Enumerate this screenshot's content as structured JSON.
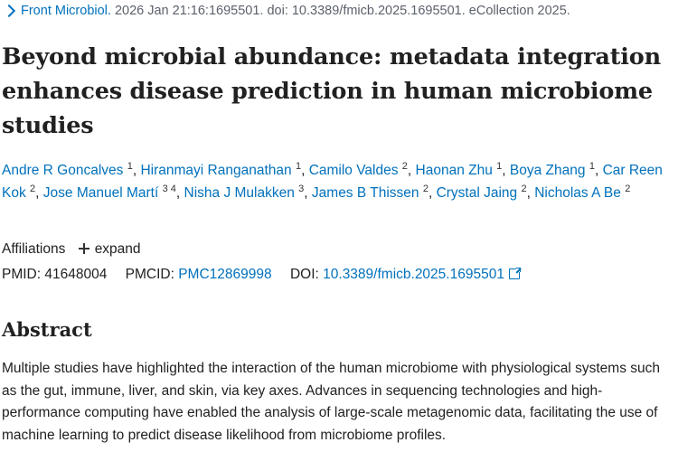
{
  "citation": {
    "journal": "Front Microbiol.",
    "details": "2026 Jan 21:16:1695501. doi: 10.3389/fmicb.2025.1695501. eCollection 2025."
  },
  "article": {
    "title": "Beyond microbial abundance: metadata integration enhances disease prediction in human microbiome studies"
  },
  "authors": [
    {
      "name": "Andre R Goncalves",
      "sup": "1"
    },
    {
      "name": "Hiranmayi Ranganathan",
      "sup": "1"
    },
    {
      "name": "Camilo Valdes",
      "sup": "2"
    },
    {
      "name": "Haonan Zhu",
      "sup": "1"
    },
    {
      "name": "Boya Zhang",
      "sup": "1"
    },
    {
      "name": "Car Reen Kok",
      "sup": "2"
    },
    {
      "name": "Jose Manuel Martí",
      "sup": "3 4"
    },
    {
      "name": "Nisha J Mulakken",
      "sup": "3"
    },
    {
      "name": "James B Thissen",
      "sup": "2"
    },
    {
      "name": "Crystal Jaing",
      "sup": "2"
    },
    {
      "name": "Nicholas A Be",
      "sup": "2"
    }
  ],
  "affiliations": {
    "label": "Affiliations",
    "expand_label": "expand"
  },
  "identifiers": {
    "pmid_label": "PMID:",
    "pmid": "41648004",
    "pmcid_label": "PMCID:",
    "pmcid": "PMC12869998",
    "doi_label": "DOI:",
    "doi": "10.3389/fmicb.2025.1695501"
  },
  "abstract": {
    "heading": "Abstract",
    "text": "Multiple studies have highlighted the interaction of the human microbiome with physiological systems such as the gut, immune, liver, and skin, via key axes. Advances in sequencing technologies and high-performance computing have enabled the analysis of large-scale metagenomic data, facilitating the use of machine learning to predict disease likelihood from microbiome profiles."
  }
}
